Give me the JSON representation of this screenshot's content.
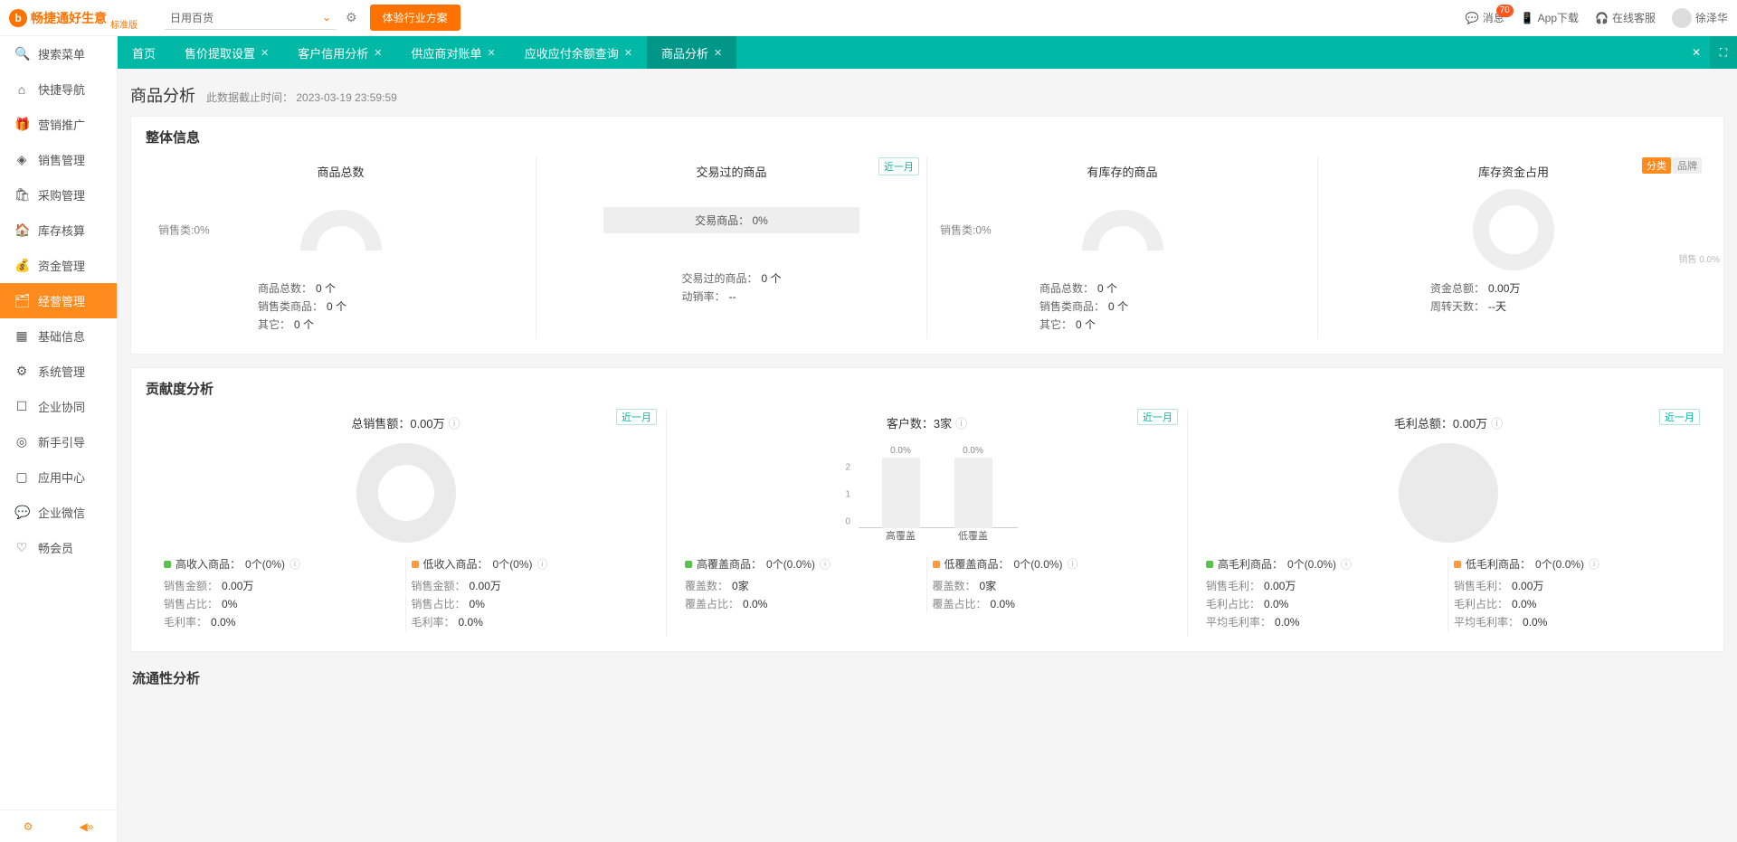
{
  "header": {
    "logo_text": "畅捷通好生意",
    "edition": "标准版",
    "category": "日用百货",
    "btn_trial": "体验行业方案",
    "msg_label": "消息",
    "msg_count": "70",
    "app_label": "App下载",
    "service_label": "在线客服",
    "user_name": "徐泽华"
  },
  "sidebar": {
    "items": [
      {
        "icon": "🔍",
        "label": "搜索菜单"
      },
      {
        "icon": "⌂",
        "label": "快捷导航"
      },
      {
        "icon": "🎁",
        "label": "营销推广"
      },
      {
        "icon": "◈",
        "label": "销售管理"
      },
      {
        "icon": "🛍",
        "label": "采购管理"
      },
      {
        "icon": "🏠",
        "label": "库存核算"
      },
      {
        "icon": "💰",
        "label": "资金管理"
      },
      {
        "icon": "🗂",
        "label": "经营管理"
      },
      {
        "icon": "▦",
        "label": "基础信息"
      },
      {
        "icon": "⚙",
        "label": "系统管理"
      },
      {
        "icon": "☐",
        "label": "企业协同"
      },
      {
        "icon": "◎",
        "label": "新手引导"
      },
      {
        "icon": "▢",
        "label": "应用中心"
      },
      {
        "icon": "💬",
        "label": "企业微信"
      },
      {
        "icon": "♡",
        "label": "畅会员"
      }
    ],
    "active_index": 7
  },
  "tabs": {
    "items": [
      {
        "label": "首页",
        "closable": false
      },
      {
        "label": "售价提取设置",
        "closable": true
      },
      {
        "label": "客户信用分析",
        "closable": true
      },
      {
        "label": "供应商对账单",
        "closable": true
      },
      {
        "label": "应收应付余额查询",
        "closable": true
      },
      {
        "label": "商品分析",
        "closable": true
      }
    ],
    "active_index": 5
  },
  "page": {
    "title": "商品分析",
    "cutoff_label": "此数据截止时间：",
    "cutoff_time": "2023-03-19 23:59:59"
  },
  "overall": {
    "heading": "整体信息",
    "period_tag": "近一月",
    "tag_category": "分类",
    "tag_brand": "品牌",
    "card1": {
      "title": "商品总数",
      "left_label": "销售类:0%",
      "r1": "商品总数：",
      "v1": "0 个",
      "r2": "销售类商品：",
      "v2": "0 个",
      "r3": "其它：",
      "v3": "0 个"
    },
    "card2": {
      "title": "交易过的商品",
      "progress": "交易商品： 0%",
      "r1": "交易过的商品：",
      "v1": "0 个",
      "r2": "动销率：",
      "v2": "--"
    },
    "card3": {
      "title": "有库存的商品",
      "left_label": "销售类:0%",
      "r1": "商品总数：",
      "v1": "0 个",
      "r2": "销售类商品：",
      "v2": "0 个",
      "r3": "其它：",
      "v3": "0 个"
    },
    "card4": {
      "title": "库存资金占用",
      "side_txt": "销售 0.0%",
      "r1": "资金总额：",
      "v1": "0.00万",
      "r2": "周转天数：",
      "v2": "--天"
    }
  },
  "contrib": {
    "heading": "贡献度分析",
    "period_tag": "近一月",
    "c1": {
      "title_l": "总销售额：",
      "title_v": "0.00万",
      "left": {
        "head": "高收入商品：",
        "val": "0个(0%)",
        "a": "销售金额：",
        "av": "0.00万",
        "b": "销售占比：",
        "bv": "0%",
        "c": "毛利率：",
        "cv": "0.0%"
      },
      "right": {
        "head": "低收入商品：",
        "val": "0个(0%)",
        "a": "销售金额：",
        "av": "0.00万",
        "b": "销售占比：",
        "bv": "0%",
        "c": "毛利率：",
        "cv": "0.0%"
      }
    },
    "c2": {
      "title_l": "客户数：",
      "title_v": "3家",
      "bars": {
        "y": [
          0,
          1,
          2
        ],
        "v1": "0.0%",
        "l1": "高覆盖",
        "v2": "0.0%",
        "l2": "低覆盖"
      },
      "left": {
        "head": "高覆盖商品：",
        "val": "0个(0.0%)",
        "a": "覆盖数：",
        "av": "0家",
        "b": "覆盖占比：",
        "bv": "0.0%"
      },
      "right": {
        "head": "低覆盖商品：",
        "val": "0个(0.0%)",
        "a": "覆盖数：",
        "av": "0家",
        "b": "覆盖占比：",
        "bv": "0.0%"
      }
    },
    "c3": {
      "title_l": "毛利总额：",
      "title_v": "0.00万",
      "left": {
        "head": "高毛利商品：",
        "val": "0个(0.0%)",
        "a": "销售毛利：",
        "av": "0.00万",
        "b": "毛利占比：",
        "bv": "0.0%",
        "c": "平均毛利率：",
        "cv": "0.0%"
      },
      "right": {
        "head": "低毛利商品：",
        "val": "0个(0.0%)",
        "a": "销售毛利：",
        "av": "0.00万",
        "b": "毛利占比：",
        "bv": "0.0%",
        "c": "平均毛利率：",
        "cv": "0.0%"
      }
    }
  },
  "next_section": "流通性分析"
}
